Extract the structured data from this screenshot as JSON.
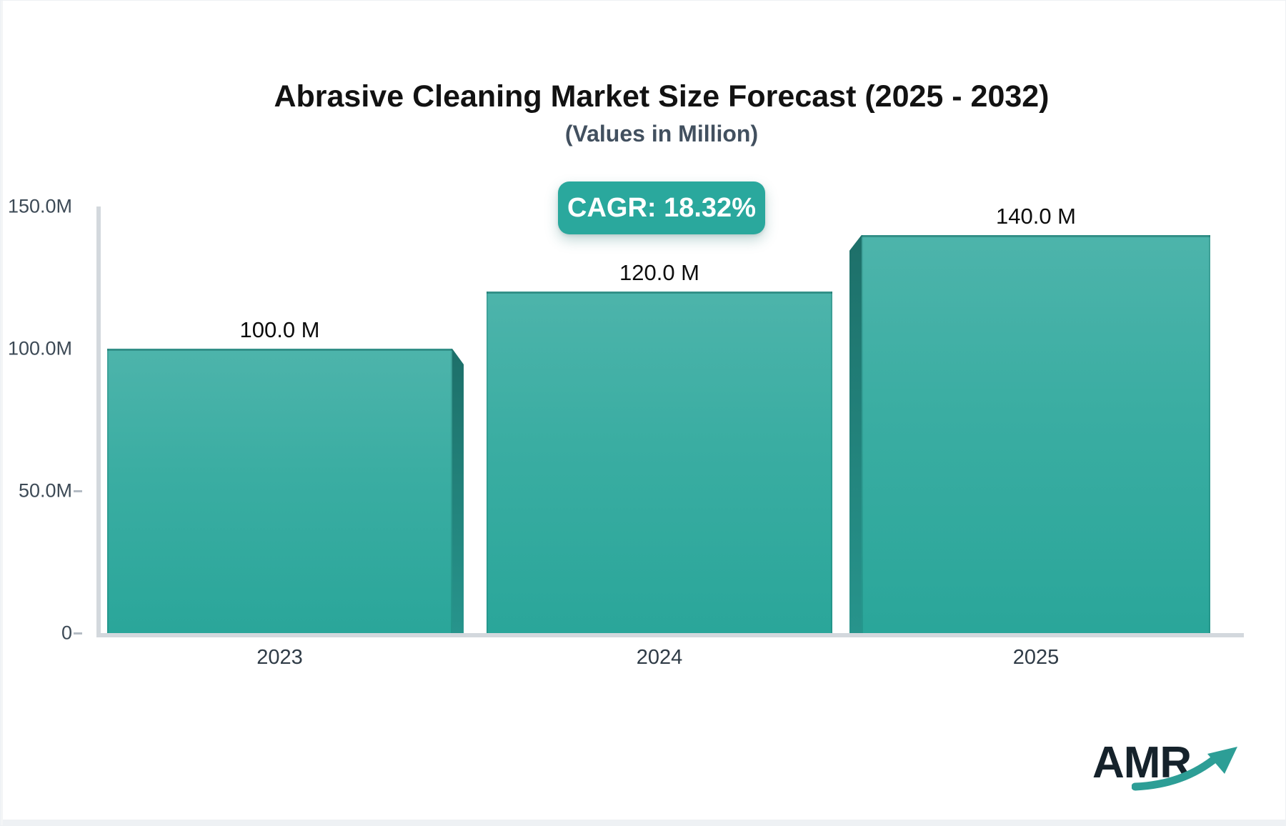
{
  "chart_data": {
    "type": "bar",
    "title": "Abrasive Cleaning Market Size Forecast (2025 - 2032)",
    "subtitle": "(Values in Million)",
    "cagr_label": "CAGR: 18.32%",
    "cagr_value": "18.32%",
    "categories": [
      "2023",
      "2024",
      "2025"
    ],
    "values": [
      100,
      120,
      140
    ],
    "value_unit": "Million",
    "data_labels": [
      "100.0 M",
      "120.0 M",
      "140.0 M"
    ],
    "y_ticks": [
      {
        "label": "0",
        "value": 0
      },
      {
        "label": "50.0M",
        "value": 50
      },
      {
        "label": "100.0M",
        "value": 100
      },
      {
        "label": "150.0M",
        "value": 150
      }
    ],
    "ylim": [
      0,
      150
    ],
    "xlabel": "",
    "ylabel": "",
    "grid": false,
    "legend": "none",
    "colors": {
      "bar_top": "#4db4ab",
      "bar_bottom": "#2aa69a",
      "bar_side": "#1d6f69",
      "badge_background": "#2aa89d",
      "badge_text": "#ffffff",
      "axis": "#d3d8dd",
      "tick_text": "#3d4a56",
      "data_label_text": "#0d0d0d",
      "title_text": "#121212",
      "subtitle_text": "#42505f"
    }
  },
  "logo": {
    "text": "AMR",
    "text_color": "#15222b",
    "arrow_color": "#2d9e96"
  }
}
